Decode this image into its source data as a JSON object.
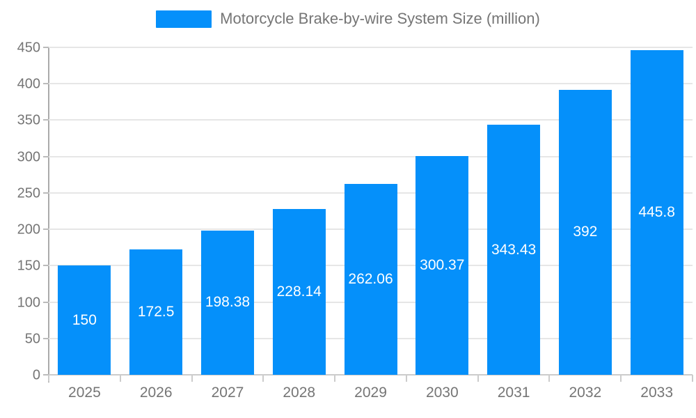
{
  "legend": {
    "label": "Motorcycle Brake-by-wire System Size (million)"
  },
  "chart_data": {
    "type": "bar",
    "title": "Motorcycle Brake-by-wire System Size (million)",
    "categories": [
      "2025",
      "2026",
      "2027",
      "2028",
      "2029",
      "2030",
      "2031",
      "2032",
      "2033"
    ],
    "values": [
      150,
      172.5,
      198.38,
      228.14,
      262.06,
      300.37,
      343.43,
      392,
      445.8
    ],
    "value_labels": [
      "150",
      "172.5",
      "198.38",
      "228.14",
      "262.06",
      "300.37",
      "343.43",
      "392",
      "445.8"
    ],
    "series_name": "Motorcycle Brake-by-wire System Size (million)",
    "xlabel": "",
    "ylabel": "",
    "ylim": [
      0,
      450
    ],
    "yticks": [
      0,
      50,
      100,
      150,
      200,
      250,
      300,
      350,
      400,
      450
    ],
    "grid": true,
    "legend_position": "top-center",
    "value_label_position": "middle-of-bar",
    "colors": {
      "bar": "#0590fa",
      "bar_value_text": "#ffffff",
      "axis_text": "#757575",
      "gridline": "#e6e6e6",
      "zero_line": "#cccccc",
      "y_axis_line": "#aaaaaa",
      "tick": "#bbbbbb"
    }
  }
}
